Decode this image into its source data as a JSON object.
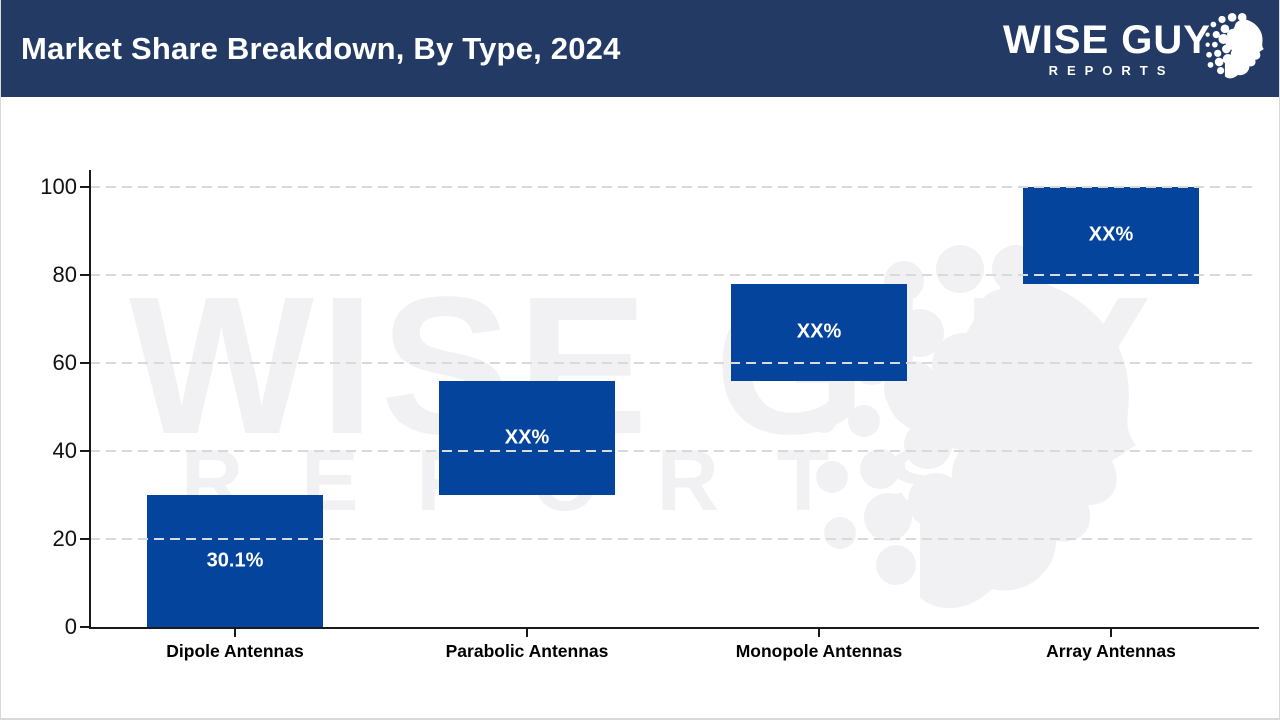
{
  "header": {
    "title": "Market Share Breakdown, By Type, 2024",
    "logo_line1": "WISE GUY",
    "logo_line2": "REPORTS"
  },
  "watermark": {
    "line1": "WISE GUY",
    "line2": "REPORTS"
  },
  "colors": {
    "header_bg": "#223a64",
    "bar": "#05449c",
    "grid": "#d9d9d9",
    "axis": "#1a1a1a",
    "bar_label_text": "#ffffff",
    "watermark": "#f1f1f3"
  },
  "chart_data": {
    "type": "bar",
    "subtype": "waterfall",
    "title": "Market Share Breakdown, By Type, 2024",
    "categories": [
      "Dipole Antennas",
      "Parabolic Antennas",
      "Monopole Antennas",
      "Array Antennas"
    ],
    "bars": [
      {
        "category": "Dipole Antennas",
        "start": 0,
        "end": 30.1,
        "label": "30.1%"
      },
      {
        "category": "Parabolic Antennas",
        "start": 30.1,
        "end": 56,
        "label": "XX%"
      },
      {
        "category": "Monopole Antennas",
        "start": 56,
        "end": 78,
        "label": "XX%"
      },
      {
        "category": "Array Antennas",
        "start": 78,
        "end": 100,
        "label": "XX%"
      }
    ],
    "xlabel": "",
    "ylabel": "",
    "ylim": [
      0,
      100
    ],
    "yticks": [
      0,
      20,
      40,
      60,
      80,
      100
    ],
    "grid": "horizontal-dashed",
    "legend": "none"
  }
}
